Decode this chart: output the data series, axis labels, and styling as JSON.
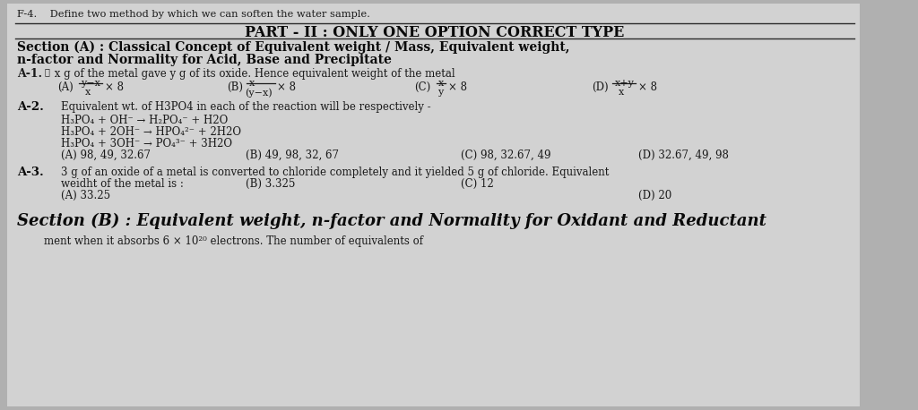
{
  "background_color": "#b8b8b8",
  "page_bg": "#d0d0d0",
  "title": "PART - II : ONLY ONE OPTION CORRECT TYPE",
  "section_a_header_1": "Section (A) : Classical Concept of Equivalent weight / Mass, Equivalent weight,",
  "section_a_header_2": "n-factor and Normality for Acid, Base and Precipitate",
  "f4_text": "F-4.    Define two method by which we can soften the water sample.",
  "a1_label": "A-1.",
  "a1_text": " x g of the metal gave y g of its oxide. Hence equivalent weight of the metal",
  "a2_label": "A-2.",
  "a2_text": "Equivalent wt. of H3PO4 in each of the reaction will be respectively -",
  "a2_r1": "H3PO4 + OH⁻ → H2PO4⁻ + H2O",
  "a2_r2": "H3PO4 + 2OH⁻ → HPO4²⁻ + 2H2O",
  "a2_r3": "H3PO4 + 3OH⁻ → PO4³⁻ + 3H2O",
  "a2_optA": "(A) 98, 49, 32.67",
  "a2_optB": "(B) 49, 98, 32, 67",
  "a2_optC": "(C) 98, 32.67, 49",
  "a2_optD": "(D) 32.67, 49, 98",
  "a3_label": "A-3.",
  "a3_text1": "3 g of an oxide of a metal is converted to chloride completely and it yielded 5 g of chloride. Equivalent",
  "a3_text2": "weidht of the metal is :",
  "a3_optA": "(A) 33.25",
  "a3_optB": "(B) 3.325",
  "a3_optC": "(C) 12",
  "a3_optD": "(D) 20",
  "secB_header": "Section (B) : Equivalent weight, n-factor and Normality for Oxidant and Reductant",
  "secB_text": "        ment when it absorbs 6 × 10²⁰ electrons. The number of equivalents of",
  "frac_A_num": "y−x",
  "frac_A_den": "x",
  "frac_B_num": "x",
  "frac_B_den": "(y−x)",
  "frac_C_num": "x",
  "frac_C_den": "y",
  "frac_D_num": "x+y",
  "frac_D_den": "x",
  "times8": "× 8",
  "h3po4": "H₃PO₄",
  "h2po4": "H₂PO₄",
  "hpo4": "HPO₄",
  "po4": "PO₄"
}
